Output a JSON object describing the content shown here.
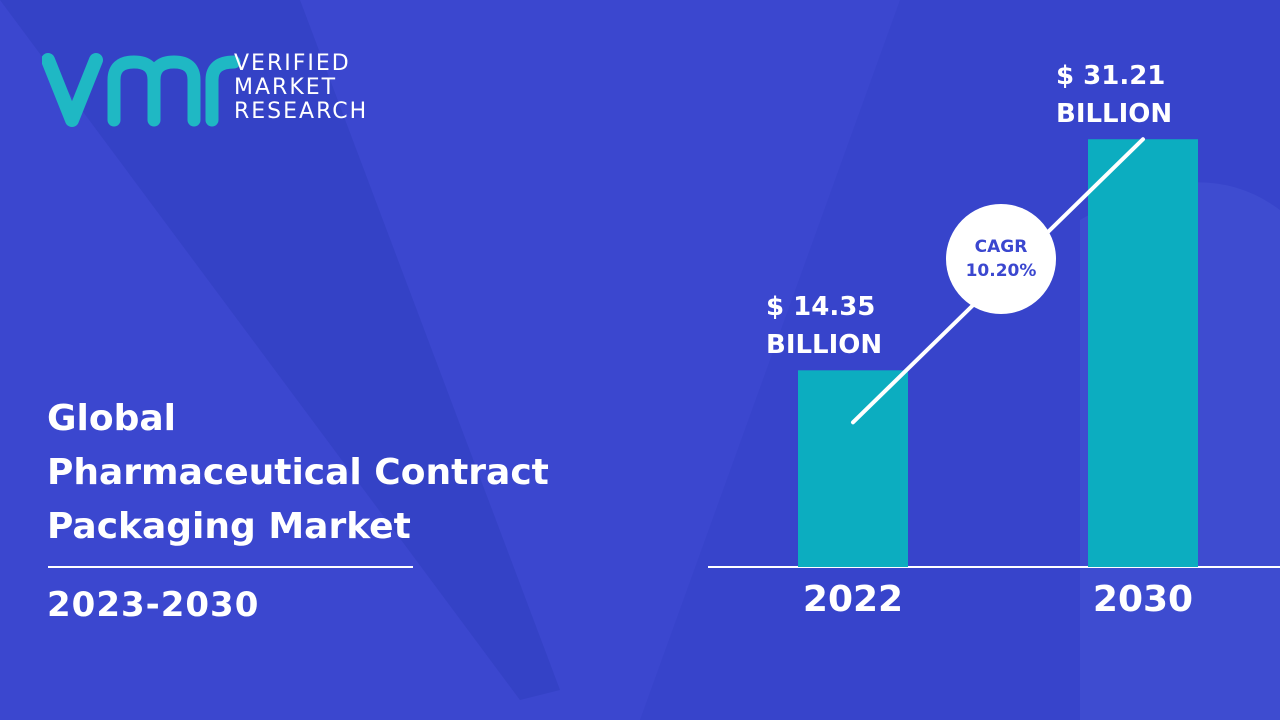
{
  "brand": {
    "logo_lines": [
      "VERIFIED",
      "MARKET",
      "RESEARCH"
    ]
  },
  "title_lines": [
    "Global",
    "Pharmaceutical Contract",
    "Packaging Market"
  ],
  "period": "2023-2030",
  "colors": {
    "background": "#3b47cf",
    "bar": "#0cadc0",
    "logo_teal": "#1fb8c4",
    "text": "#ffffff"
  },
  "cagr": {
    "label": "CAGR",
    "value": "10.20%"
  },
  "chart_data": {
    "type": "bar",
    "categories": [
      "2022",
      "2030"
    ],
    "values": [
      14.35,
      31.21
    ],
    "value_labels": [
      [
        "$ 14.35",
        "BILLION"
      ],
      [
        "$ 31.21",
        "BILLION"
      ]
    ],
    "ylim": [
      0,
      34
    ],
    "grid": false
  }
}
